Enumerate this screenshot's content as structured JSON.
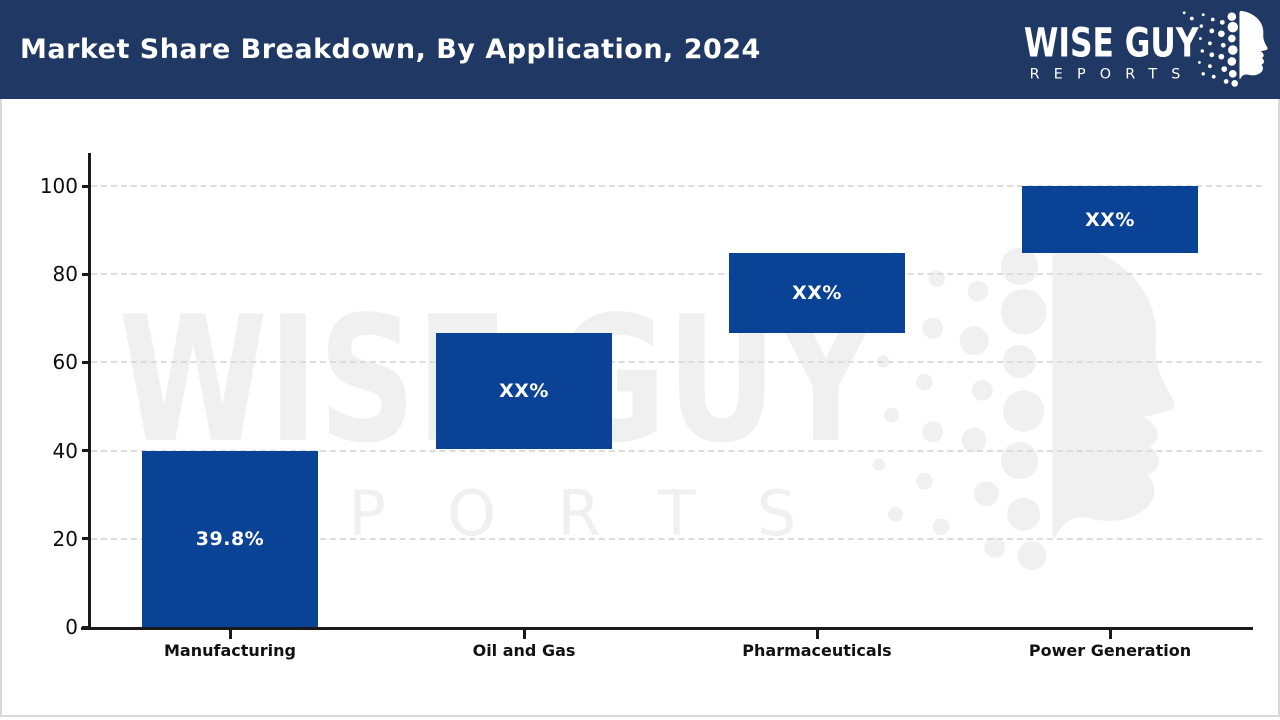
{
  "header": {
    "title": "Market Share Breakdown, By Application, 2024",
    "logo": {
      "line1": "WISE GUY",
      "line2": "REPORTS"
    }
  },
  "watermark": {
    "line1": "WISE GUY",
    "line2": "REPORTS"
  },
  "chart_data": {
    "type": "bar",
    "subtype": "floating-waterfall",
    "title": "Market Share Breakdown, By Application, 2024",
    "categories": [
      "Manufacturing",
      "Oil and Gas",
      "Pharmaceuticals",
      "Power Generation"
    ],
    "segments": [
      {
        "category": "Manufacturing",
        "start": 0,
        "end": 39.8,
        "label": "39.8%"
      },
      {
        "category": "Oil and Gas",
        "start": 40.3,
        "end": 66.7,
        "label": "XX%"
      },
      {
        "category": "Pharmaceuticals",
        "start": 66.7,
        "end": 84.8,
        "label": "XX%"
      },
      {
        "category": "Power Generation",
        "start": 84.8,
        "end": 100,
        "label": "XX%"
      }
    ],
    "xlabel": "",
    "ylabel": "",
    "y_ticks": [
      0,
      20,
      40,
      60,
      80,
      100
    ],
    "ylim": [
      0,
      107
    ],
    "grid": "horizontal-dashed",
    "legend": "none",
    "bar_color": "#0a4296",
    "bar_label_color": "#ffffff",
    "axis_color": "#1a1a1a",
    "gridline_color": "#dcdcdc",
    "header_color": "#203864",
    "watermark_color": "#f0f0f0"
  }
}
